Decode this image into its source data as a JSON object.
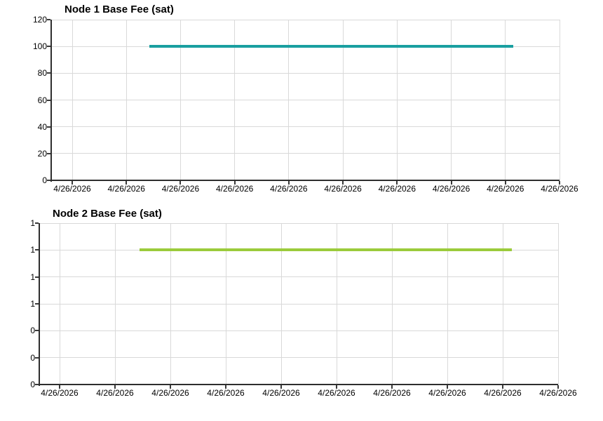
{
  "window": {
    "background": "#ffffff"
  },
  "colors": {
    "gridline": "#d9d9d9",
    "axis": "#2e2e2e",
    "tick_mark": "#3a3a3a",
    "text": "#000000",
    "node1_line": "#1a9fa0",
    "node2_line": "#9bcb3b"
  },
  "chart_data": [
    {
      "type": "line",
      "title": "Node 1 Base Fee (sat)",
      "xlabel": "",
      "ylabel": "",
      "ylim": [
        0,
        120
      ],
      "y_tick_step": 20,
      "grid": true,
      "legend": "none",
      "y_tick_labels": [
        "120",
        "100",
        "80",
        "60",
        "40",
        "20",
        "0"
      ],
      "x_tick_labels": [
        "4/26/2026",
        "4/26/2026",
        "4/26/2026",
        "4/26/2026",
        "4/26/2026",
        "4/26/2026",
        "4/26/2026",
        "4/26/2026",
        "4/26/2026",
        "4/26/2026"
      ],
      "series": [
        {
          "name": "Node 1 Base Fee",
          "value": 100,
          "color": "#1a9fa0",
          "x_span_frac": [
            0.192,
            0.909
          ]
        }
      ]
    },
    {
      "type": "line",
      "title": "Node 2 Base Fee (sat)",
      "xlabel": "",
      "ylabel": "",
      "ylim": [
        0,
        1.2
      ],
      "y_tick_step": 0.2,
      "grid": true,
      "legend": "none",
      "y_tick_labels": [
        "1",
        "1",
        "1",
        "1",
        "0",
        "0",
        "0"
      ],
      "x_tick_labels": [
        "4/26/2026",
        "4/26/2026",
        "4/26/2026",
        "4/26/2026",
        "4/26/2026",
        "4/26/2026",
        "4/26/2026",
        "4/26/2026",
        "4/26/2026",
        "4/26/2026"
      ],
      "series": [
        {
          "name": "Node 2 Base Fee",
          "value": 1,
          "color": "#9bcb3b",
          "x_span_frac": [
            0.192,
            0.911
          ]
        }
      ]
    }
  ]
}
